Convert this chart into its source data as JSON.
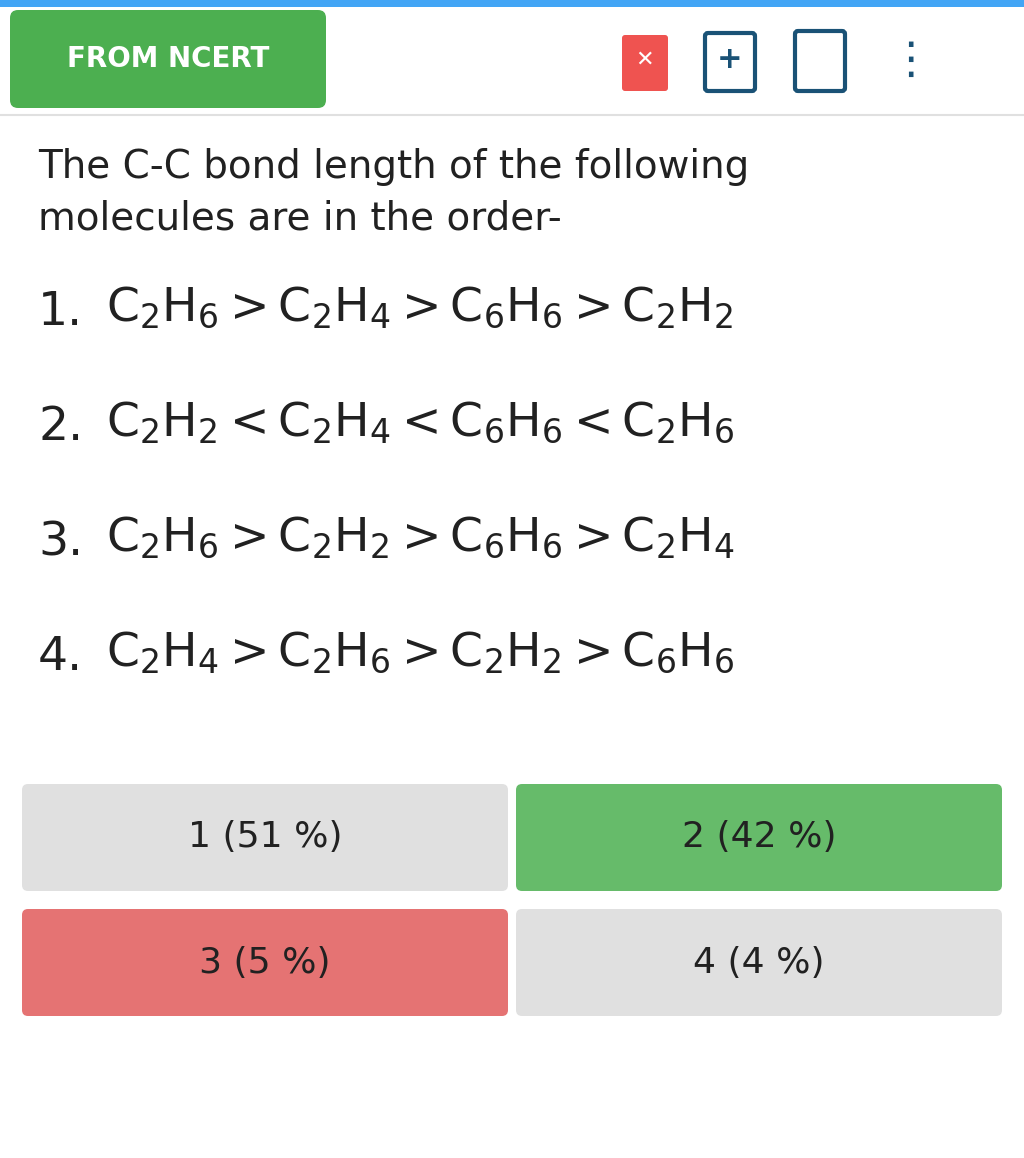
{
  "bg_color": "#ffffff",
  "from_ncert_bg": "#4caf50",
  "from_ncert_text": "FROM NCERT",
  "from_ncert_text_color": "#ffffff",
  "question_line1": "The C-C bond length of the following",
  "question_line2": "molecules are in the order-",
  "options": [
    {
      "num": "1.",
      "formula": "$\\mathregular{C_2H_6 > C_2H_4 > C_6H_6 > C_2H_2}$"
    },
    {
      "num": "2.",
      "formula": "$\\mathregular{C_2H_2 < C_2H_4 < C_6H_6 < C_2H_6}$"
    },
    {
      "num": "3.",
      "formula": "$\\mathregular{C_2H_6 > C_2H_2 > C_6H_6 > C_2H_4}$"
    },
    {
      "num": "4.",
      "formula": "$\\mathregular{C_2H_4 > C_2H_6 > C_2H_2 > C_6H_6}$"
    }
  ],
  "buttons": [
    {
      "label": "1 (51 %)",
      "color": "#e0e0e0",
      "text_color": "#212121"
    },
    {
      "label": "2 (42 %)",
      "color": "#66bb6a",
      "text_color": "#212121"
    },
    {
      "label": "3 (5 %)",
      "color": "#e57373",
      "text_color": "#212121"
    },
    {
      "label": "4 (4 %)",
      "color": "#e0e0e0",
      "text_color": "#212121"
    }
  ],
  "top_strip_color": "#42a5f5",
  "fig_width": 10.24,
  "fig_height": 11.58,
  "dpi": 100
}
